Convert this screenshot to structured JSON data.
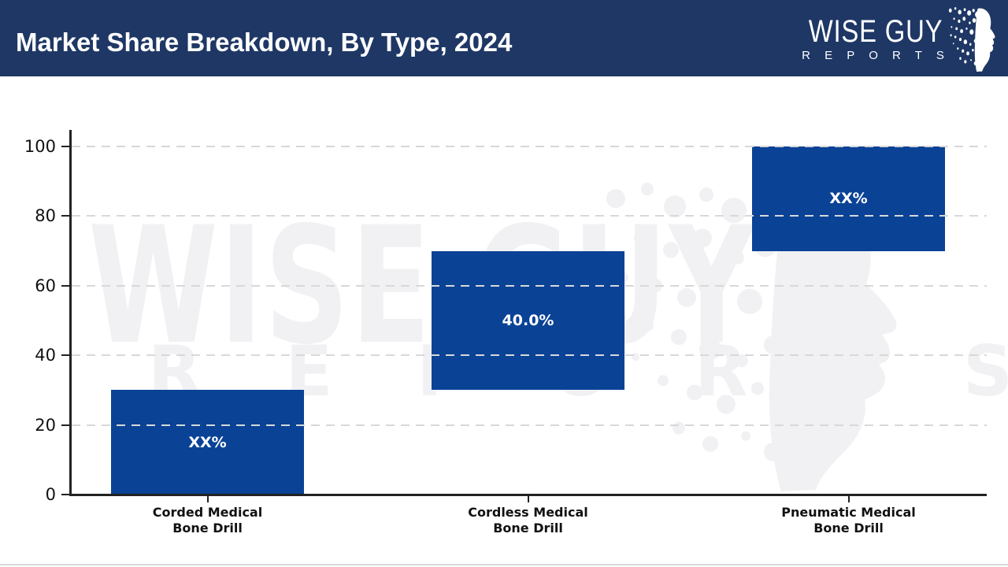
{
  "header": {
    "title": "Market Share Breakdown, By Type, 2024",
    "logo": {
      "line1": "WISE GUY",
      "line2": "R E P O R T S"
    }
  },
  "watermark": {
    "line1": "WISE GUY",
    "line2": "R E P O R T S"
  },
  "colors": {
    "header_bg": "#1e3765",
    "bar": "#0a4296",
    "grid": "#d8d8d8",
    "axis": "#222222",
    "watermark": "#f1f1f4",
    "bar_label_text": "#ffffff"
  },
  "chart_data": {
    "type": "bar",
    "subtype": "floating-waterfall",
    "title": "Market Share Breakdown, By Type, 2024",
    "categories": [
      "Corded Medical\nBone Drill",
      "Cordless Medical\nBone Drill",
      "Pneumatic Medical\nBone Drill"
    ],
    "series": [
      {
        "name": "Market Share",
        "segments": [
          [
            0,
            30
          ],
          [
            30,
            70
          ],
          [
            70,
            100
          ]
        ],
        "labels": [
          "XX%",
          "40.0%",
          "XX%"
        ]
      }
    ],
    "xlabel": "",
    "ylabel": "",
    "yticks": [
      0,
      20,
      40,
      60,
      80,
      100
    ],
    "ylim": [
      0,
      105
    ],
    "grid": "dashed-horizontal",
    "legend": "none"
  }
}
